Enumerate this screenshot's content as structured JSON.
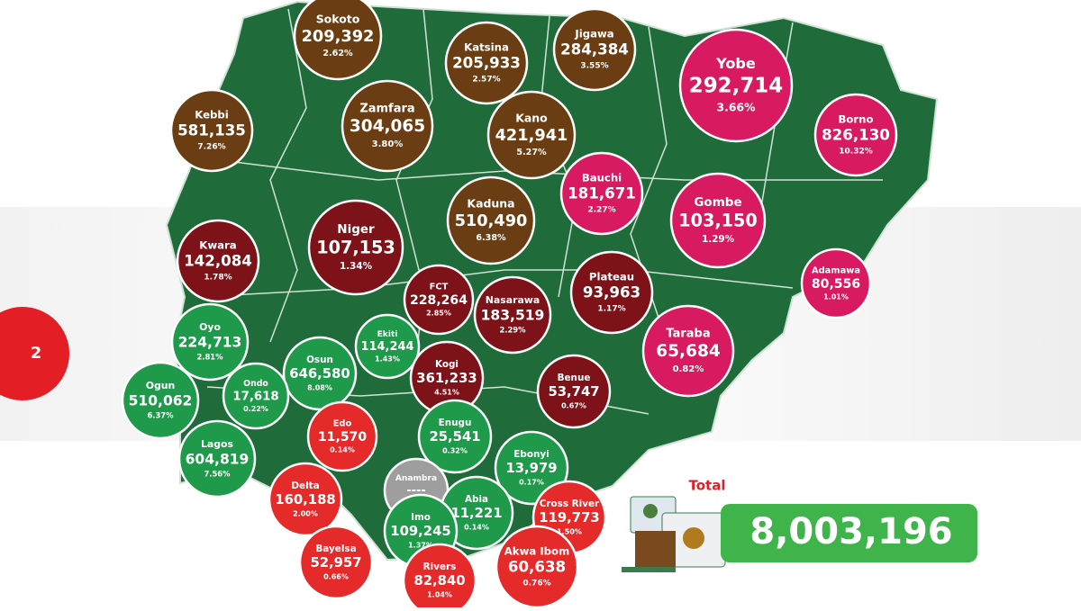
{
  "page_marker": "2",
  "total": {
    "label": "Total",
    "value": "8,003,196"
  },
  "states": [
    {
      "name": "Sokoto",
      "count": "209,392",
      "share": "2.62%"
    },
    {
      "name": "Katsina",
      "count": "205,933",
      "share": "2.57%"
    },
    {
      "name": "Jigawa",
      "count": "284,384",
      "share": "3.55%"
    },
    {
      "name": "Yobe",
      "count": "292,714",
      "share": "3.66%"
    },
    {
      "name": "Kebbi",
      "count": "581,135",
      "share": "7.26%"
    },
    {
      "name": "Zamfara",
      "count": "304,065",
      "share": "3.80%"
    },
    {
      "name": "Kano",
      "count": "421,941",
      "share": "5.27%"
    },
    {
      "name": "Borno",
      "count": "826,130",
      "share": "10.32%"
    },
    {
      "name": "Bauchi",
      "count": "181,671",
      "share": "2.27%"
    },
    {
      "name": "Gombe",
      "count": "103,150",
      "share": "1.29%"
    },
    {
      "name": "Kaduna",
      "count": "510,490",
      "share": "6.38%"
    },
    {
      "name": "Niger",
      "count": "107,153",
      "share": "1.34%"
    },
    {
      "name": "Kwara",
      "count": "142,084",
      "share": "1.78%"
    },
    {
      "name": "Adamawa",
      "count": "80,556",
      "share": "1.01%"
    },
    {
      "name": "FCT",
      "count": "228,264",
      "share": "2.85%"
    },
    {
      "name": "Nasarawa",
      "count": "183,519",
      "share": "2.29%"
    },
    {
      "name": "Plateau",
      "count": "93,963",
      "share": "1.17%"
    },
    {
      "name": "Oyo",
      "count": "224,713",
      "share": "2.81%"
    },
    {
      "name": "Ekiti",
      "count": "114,244",
      "share": "1.43%"
    },
    {
      "name": "Taraba",
      "count": "65,684",
      "share": "0.82%"
    },
    {
      "name": "Osun",
      "count": "646,580",
      "share": "8.08%"
    },
    {
      "name": "Kogi",
      "count": "361,233",
      "share": "4.51%"
    },
    {
      "name": "Ogun",
      "count": "510,062",
      "share": "6.37%"
    },
    {
      "name": "Ondo",
      "count": "17,618",
      "share": "0.22%"
    },
    {
      "name": "Benue",
      "count": "53,747",
      "share": "0.67%"
    },
    {
      "name": "Edo",
      "count": "11,570",
      "share": "0.14%"
    },
    {
      "name": "Enugu",
      "count": "25,541",
      "share": "0.32%"
    },
    {
      "name": "Lagos",
      "count": "604,819",
      "share": "7.56%"
    },
    {
      "name": "Ebonyi",
      "count": "13,979",
      "share": "0.17%"
    },
    {
      "name": "Anambra",
      "count": "----",
      "share": "----"
    },
    {
      "name": "Delta",
      "count": "160,188",
      "share": "2.00%"
    },
    {
      "name": "Abia",
      "count": "11,221",
      "share": "0.14%"
    },
    {
      "name": "Imo",
      "count": "109,245",
      "share": "1.37%"
    },
    {
      "name": "Cross River",
      "count": "119,773",
      "share": "1.50%"
    },
    {
      "name": "Bayelsa",
      "count": "52,957",
      "share": "0.66%"
    },
    {
      "name": "Akwa Ibom",
      "count": "60,638",
      "share": "0.76%"
    },
    {
      "name": "Rivers",
      "count": "82,840",
      "share": "1.04%"
    }
  ]
}
